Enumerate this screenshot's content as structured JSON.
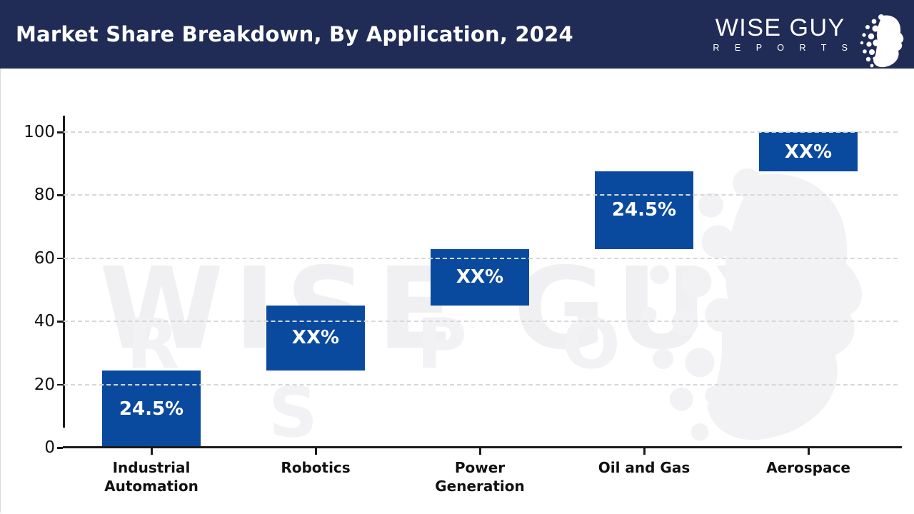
{
  "header": {
    "title": "Market Share Breakdown, By Application, 2024",
    "bg_color": "#202c56",
    "logo": {
      "line1": "WISE GUY",
      "line2": "R E P O R T S"
    }
  },
  "watermark": {
    "line1": "WISE GUY",
    "line2": "R E P O R T S"
  },
  "colors": {
    "bar": "#0a4a9e",
    "bar_label": "#ffffff",
    "grid": "#d8d8d8",
    "axis": "#1a1a1a",
    "frame_border": "#d9d9d9",
    "watermark": "#f0f0f2"
  },
  "chart_data": {
    "type": "bar",
    "subtype": "waterfall",
    "title": "Market Share Breakdown, By Application, 2024",
    "categories": [
      "Industrial Automation",
      "Robotics",
      "Power Generation",
      "Oil and Gas",
      "Aerospace"
    ],
    "segments": [
      {
        "category": "Industrial Automation",
        "start": 0,
        "end": 24.5,
        "label": "24.5%"
      },
      {
        "category": "Robotics",
        "start": 24.5,
        "end": 45,
        "label": "XX%"
      },
      {
        "category": "Power Generation",
        "start": 45,
        "end": 63,
        "label": "XX%"
      },
      {
        "category": "Oil and Gas",
        "start": 63,
        "end": 87.5,
        "label": "24.5%"
      },
      {
        "category": "Aerospace",
        "start": 87.5,
        "end": 100,
        "label": "XX%"
      }
    ],
    "y_ticks": [
      0,
      20,
      40,
      60,
      80,
      100
    ],
    "ylim": [
      0,
      105
    ],
    "xlabel": "",
    "ylabel": "",
    "grid": "horizontal dashed",
    "legend": "none",
    "bar_color": "#0a4a9e"
  }
}
